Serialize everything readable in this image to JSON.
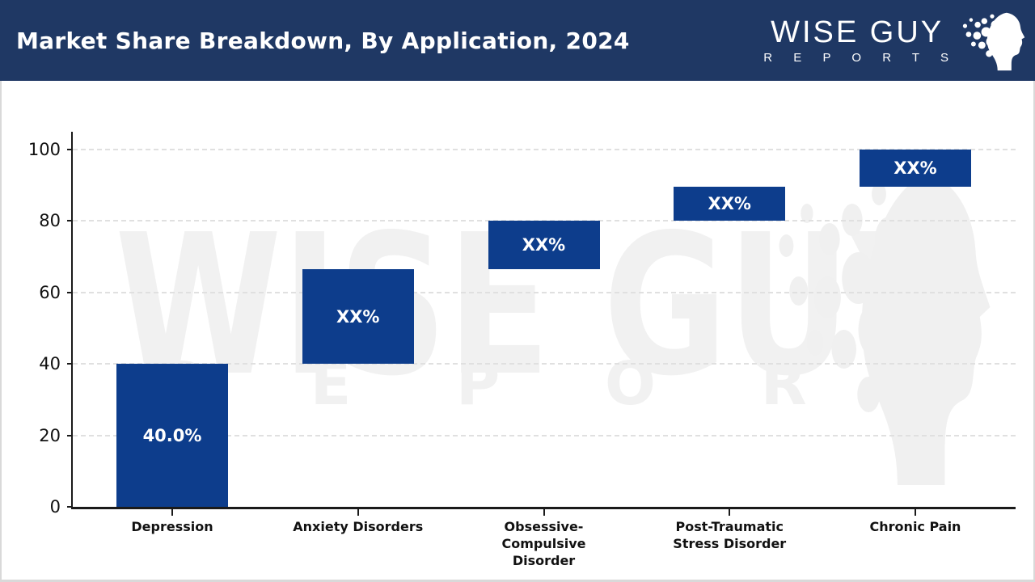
{
  "header": {
    "title": "Market Share Breakdown, By Application, 2024",
    "logo": {
      "line1": "WISE GUY",
      "line2": "R E P O R T S"
    }
  },
  "watermark": {
    "line1": "WISE GUY",
    "line2": "R E P O R T S"
  },
  "colors": {
    "header_bg": "#1f3864",
    "bar": "#0d3d8c",
    "axis": "#1a1a1a",
    "grid": "#e0e0e0",
    "watermark": "#f1f1f1",
    "bar_label": "#ffffff",
    "tick_label": "#111111",
    "page_border": "#d9d9d9"
  },
  "chart_data": {
    "type": "bar",
    "subtype": "waterfall",
    "title": "Market Share Breakdown, By Application, 2024",
    "xlabel": "",
    "ylabel": "",
    "ylim": [
      0,
      105
    ],
    "y_ticks": [
      0,
      20,
      40,
      60,
      80,
      100
    ],
    "grid": "horizontal-dashed",
    "legend": "none",
    "categories": [
      "Depression",
      "Anxiety Disorders",
      "Obsessive-Compulsive Disorder",
      "Post-Traumatic Stress Disorder",
      "Chronic Pain"
    ],
    "category_label_lines": [
      [
        "Depression"
      ],
      [
        "Anxiety Disorders"
      ],
      [
        "Obsessive-",
        "Compulsive",
        "Disorder"
      ],
      [
        "Post-Traumatic",
        "Stress Disorder"
      ],
      [
        "Chronic Pain"
      ]
    ],
    "segments": [
      {
        "category": "Depression",
        "start": 0,
        "end": 40,
        "value_pct_est": 40.0,
        "label": "40.0%"
      },
      {
        "category": "Anxiety Disorders",
        "start": 40,
        "end": 66.5,
        "value_pct_est": 26.5,
        "label": "XX%"
      },
      {
        "category": "Obsessive-Compulsive Disorder",
        "start": 66.5,
        "end": 80,
        "value_pct_est": 13.5,
        "label": "XX%"
      },
      {
        "category": "Post-Traumatic Stress Disorder",
        "start": 80,
        "end": 89.6,
        "value_pct_est": 9.6,
        "label": "XX%"
      },
      {
        "category": "Chronic Pain",
        "start": 89.6,
        "end": 100,
        "value_pct_est": 10.4,
        "label": "XX%"
      }
    ]
  }
}
